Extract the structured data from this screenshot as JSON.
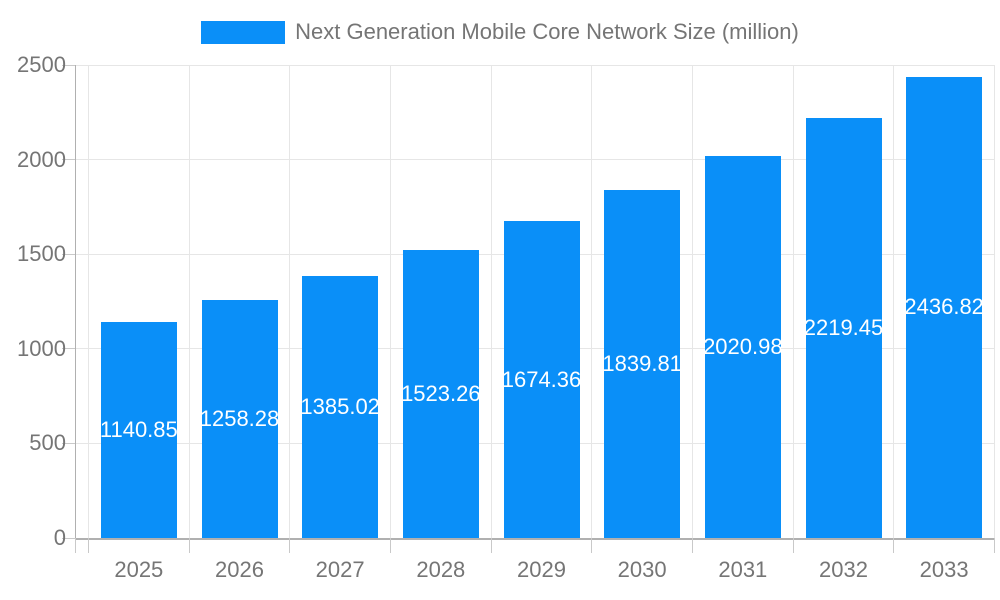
{
  "legend": {
    "label": "Next Generation Mobile Core Network Size (million)"
  },
  "chart_data": {
    "type": "bar",
    "title": "Next Generation Mobile Core Network Size (million)",
    "categories": [
      "2025",
      "2026",
      "2027",
      "2028",
      "2029",
      "2030",
      "2031",
      "2032",
      "2033"
    ],
    "values": [
      1140.85,
      1258.28,
      1385.02,
      1523.26,
      1674.36,
      1839.81,
      2020.98,
      2219.45,
      2436.82
    ],
    "value_labels": [
      "1140.85",
      "1258.28",
      "1385.02",
      "1523.26",
      "1674.36",
      "1839.81",
      "2020.98",
      "2219.45",
      "2436.82"
    ],
    "xlabel": "",
    "ylabel": "",
    "ylim": [
      0,
      2500
    ],
    "yticks": [
      0,
      500,
      1000,
      1500,
      2000,
      2500
    ],
    "grid": true,
    "legend_position": "top",
    "colors": {
      "bar": "#0a8ff8",
      "bar_label_text": "#ffffff",
      "axis_text": "#757575",
      "gridline": "#e6e6e6",
      "tick": "#c9c9c9",
      "axis_line": "#b0b0b0",
      "background": "#ffffff"
    }
  }
}
